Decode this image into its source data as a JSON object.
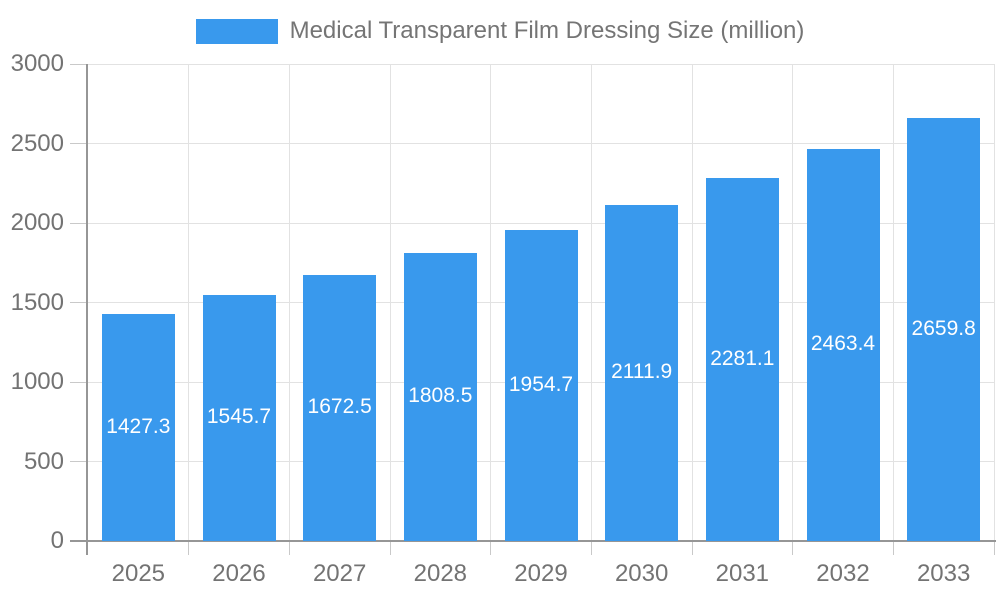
{
  "legend": {
    "label": "Medical Transparent Film Dressing Size (million)"
  },
  "chart_data": {
    "type": "bar",
    "title": "Medical Transparent Film Dressing Size (million)",
    "categories": [
      "2025",
      "2026",
      "2027",
      "2028",
      "2029",
      "2030",
      "2031",
      "2032",
      "2033"
    ],
    "values": [
      1427.3,
      1545.7,
      1672.5,
      1808.5,
      1954.7,
      2111.9,
      2281.1,
      2463.4,
      2659.8
    ],
    "value_labels": [
      "1427.3",
      "1545.7",
      "1672.5",
      "1808.5",
      "1954.7",
      "2111.9",
      "2281.1",
      "2463.4",
      "2659.8"
    ],
    "xlabel": "",
    "ylabel": "",
    "ylim": [
      0,
      3000
    ],
    "yticks": [
      0,
      500,
      1000,
      1500,
      2000,
      2500,
      3000
    ],
    "ytick_labels": [
      "0",
      "500",
      "1000",
      "1500",
      "2000",
      "2500",
      "3000"
    ],
    "grid": true,
    "legend_position": "top",
    "bar_color": "#3999ED",
    "bar_label_color": "#ffffff",
    "axis_text_color": "#737373",
    "grid_color": "#e2e2e2",
    "axis_line_color": "#969696"
  }
}
